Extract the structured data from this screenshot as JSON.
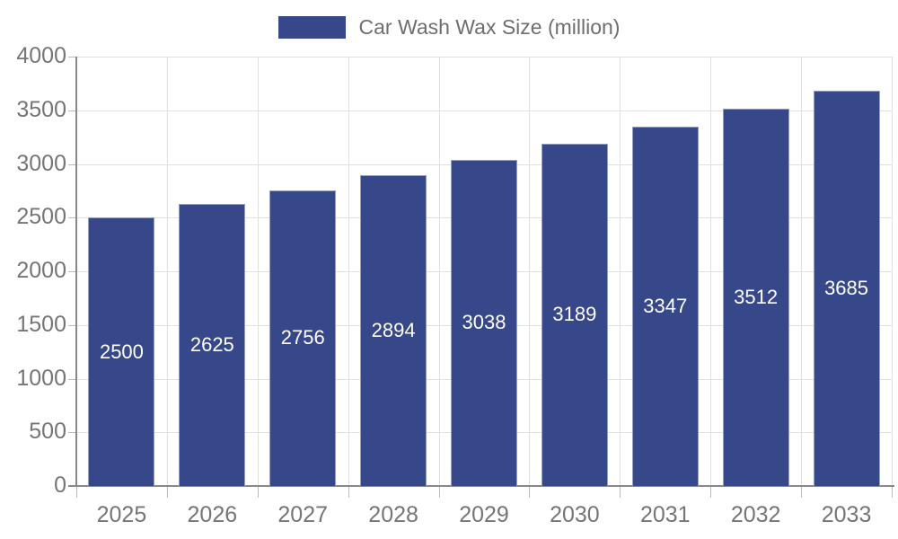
{
  "chart_data": {
    "type": "bar",
    "title": "Car Wash Wax Size (million)",
    "categories": [
      "2025",
      "2026",
      "2027",
      "2028",
      "2029",
      "2030",
      "2031",
      "2032",
      "2033"
    ],
    "values": [
      2500,
      2625,
      2756,
      2894,
      3038,
      3189,
      3347,
      3512,
      3685
    ],
    "series": [
      {
        "name": "Car Wash Wax Size (million)",
        "values": [
          2500,
          2625,
          2756,
          2894,
          3038,
          3189,
          3347,
          3512,
          3685
        ]
      }
    ],
    "xlabel": "",
    "ylabel": "",
    "ylim": [
      0,
      4000
    ],
    "y_ticks": [
      0,
      500,
      1000,
      1500,
      2000,
      2500,
      3000,
      3500,
      4000
    ],
    "grid": "on",
    "value_labels": "inside-center",
    "legend": {
      "position": "top-center",
      "entries": [
        "Car Wash Wax Size (million)"
      ]
    },
    "colors": {
      "bar": "#36478a",
      "bar_border": "#a5afcd",
      "value_label": "#ffffff",
      "axis_text": "#757575",
      "legend_text": "#6e6e6e",
      "grid_line": "#e0e0e0",
      "axis_line": "#888888",
      "tick_mark": "#bbbbbb",
      "background": "#ffffff"
    }
  }
}
